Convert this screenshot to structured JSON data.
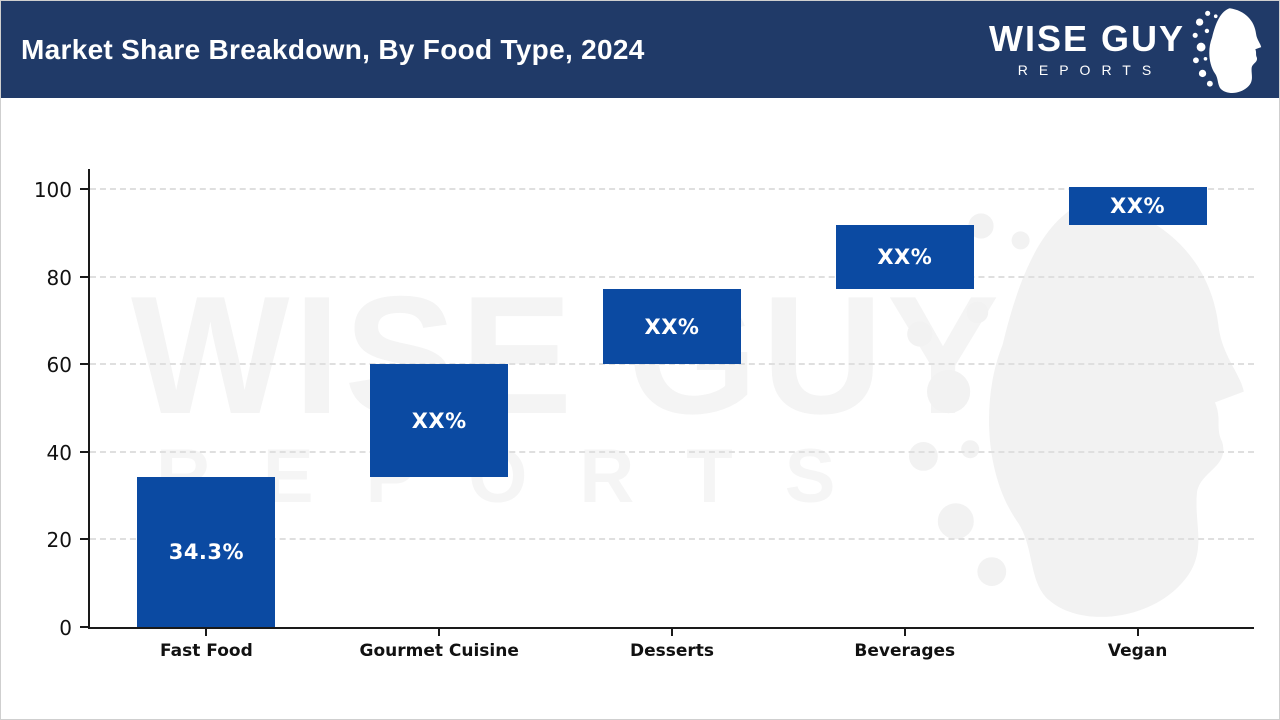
{
  "header": {
    "title": "Market Share Breakdown, By Food Type, 2024",
    "logo": {
      "primary": "WISE GUY",
      "secondary": "REPORTS"
    }
  },
  "watermark": {
    "primary": "WISE GUY",
    "secondary": "REPORTS"
  },
  "colors": {
    "header_bg": "#203a68",
    "bar": "#0b4aa2",
    "bar_label": "#ffffff",
    "grid": "#dfdfdf",
    "axis": "#1a1a1a",
    "tick_label": "#111111",
    "category_label": "#111111"
  },
  "chart_data": {
    "type": "bar",
    "variant": "waterfall",
    "title": "Market Share Breakdown, By Food Type, 2024",
    "categories": [
      "Fast Food",
      "Gourmet Cuisine",
      "Desserts",
      "Beverages",
      "Vegan"
    ],
    "segments": [
      {
        "category": "Fast Food",
        "start": 0,
        "end": 34.3,
        "label": "34.3%"
      },
      {
        "category": "Gourmet Cuisine",
        "start": 34.3,
        "end": 60,
        "label": "XX%"
      },
      {
        "category": "Desserts",
        "start": 60,
        "end": 77.2,
        "label": "XX%"
      },
      {
        "category": "Beverages",
        "start": 77.2,
        "end": 91.8,
        "label": "XX%"
      },
      {
        "category": "Vegan",
        "start": 91.8,
        "end": 100.4,
        "label": "XX%"
      }
    ],
    "yticks": [
      0,
      20,
      40,
      60,
      80,
      100
    ],
    "ylim": [
      0,
      104
    ],
    "xlabel": "",
    "ylabel": "",
    "grid": "horizontal-dashed",
    "legend": false
  }
}
